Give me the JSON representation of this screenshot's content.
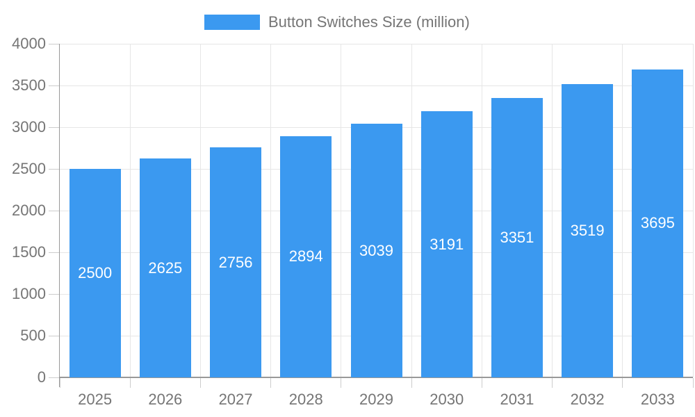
{
  "chart_data": {
    "type": "bar",
    "title": "",
    "xlabel": "",
    "ylabel": "",
    "legend": {
      "label": "Button Switches Size (million)",
      "position": "top-center"
    },
    "categories": [
      "2025",
      "2026",
      "2027",
      "2028",
      "2029",
      "2030",
      "2031",
      "2032",
      "2033"
    ],
    "series": [
      {
        "name": "Button Switches Size (million)",
        "values": [
          2500,
          2625,
          2756,
          2894,
          3039,
          3191,
          3351,
          3519,
          3695
        ]
      }
    ],
    "ylim": [
      0,
      4000
    ],
    "yticks": [
      0,
      500,
      1000,
      1500,
      2000,
      2500,
      3000,
      3500,
      4000
    ],
    "grid": true,
    "bar_labels_inside": true,
    "colors": {
      "bar": "#3B99F0",
      "bar_label_text": "#FFFFFF",
      "axis_text": "#757575",
      "grid_line": "#E6E6E6",
      "tick_line": "#CCCCCC",
      "axis_line": "#999999",
      "background": "#FFFFFF"
    }
  }
}
